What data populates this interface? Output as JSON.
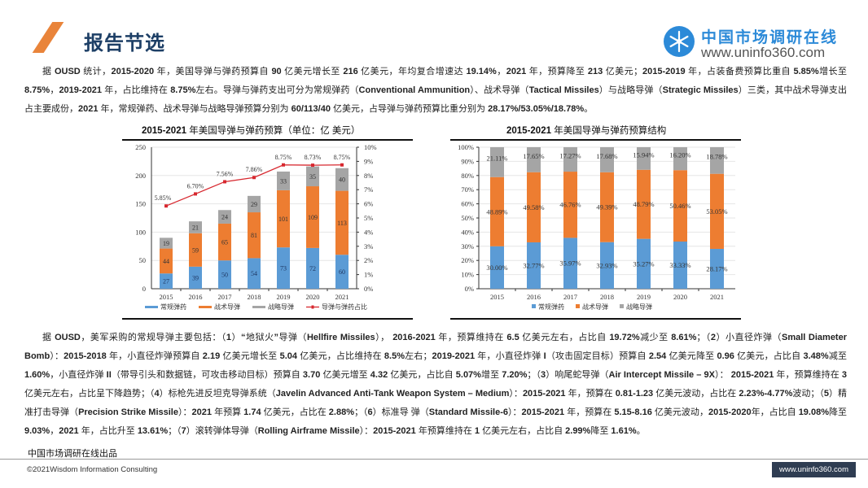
{
  "header": {
    "title": "报告节选",
    "logo_cn": "中国市场调研在线",
    "logo_url": "www.uninfo360.com"
  },
  "paragraph1": [
    {
      "t": "据 "
    },
    {
      "b": "OUSD"
    },
    {
      "t": " 统计，"
    },
    {
      "b": "2015-2020"
    },
    {
      "t": " 年，美国导弹与弹药预算自 "
    },
    {
      "b": "90"
    },
    {
      "t": " 亿美元增长至 "
    },
    {
      "b": "216"
    },
    {
      "t": " 亿美元，年均复合增速达 "
    },
    {
      "b": "19.14%"
    },
    {
      "t": "，"
    },
    {
      "b": "2021"
    },
    {
      "t": " 年，预算降至 "
    },
    {
      "b": "213"
    },
    {
      "t": " 亿美元；"
    },
    {
      "b": "2015-2019"
    },
    {
      "t": " 年，占装备费预算比重自 "
    },
    {
      "b": "5.85%"
    },
    {
      "t": "增长至 "
    },
    {
      "b": "8.75%"
    },
    {
      "t": "，"
    },
    {
      "b": "2019-2021"
    },
    {
      "t": " 年，占比维持在 "
    },
    {
      "b": "8.75%"
    },
    {
      "t": "左右。导弹与弹药支出可分为常规弹药（"
    },
    {
      "b": "Conventional Ammunition"
    },
    {
      "t": "）、战术导弹（"
    },
    {
      "b": "Tactical Missiles"
    },
    {
      "t": "）与战略导弹（"
    },
    {
      "b": "Strategic Missiles"
    },
    {
      "t": "）三类，其中战术导弹支出占主要成份，"
    },
    {
      "b": "2021"
    },
    {
      "t": " 年，常规弹药、战术导弹与战略导弹预算分别为 "
    },
    {
      "b": "60/113/40"
    },
    {
      "t": " 亿美元，占导弹与弹药预算比重分别为 "
    },
    {
      "b": "28.17%/53.05%/18.78%"
    },
    {
      "t": "。"
    }
  ],
  "paragraph2": [
    {
      "t": "据 "
    },
    {
      "b": "OUSD"
    },
    {
      "t": "，美军采购的常规导弹主要包括：（"
    },
    {
      "b": "1"
    },
    {
      "t": "）"
    },
    {
      "b": "“"
    },
    {
      "t": "地狱火"
    },
    {
      "b": "”"
    },
    {
      "t": "导弹（"
    },
    {
      "b": "Hellfire Missiles"
    },
    {
      "t": "），  "
    },
    {
      "b": "2016-2021"
    },
    {
      "t": " 年，预算维持在 "
    },
    {
      "b": "6.5"
    },
    {
      "t": " 亿美元左右，占比自 "
    },
    {
      "b": "19.72%"
    },
    {
      "t": "减少至 "
    },
    {
      "b": "8.61%"
    },
    {
      "t": "；（"
    },
    {
      "b": "2"
    },
    {
      "t": "）小直径炸弹（"
    },
    {
      "b": "Small Diameter Bomb"
    },
    {
      "t": "）："
    },
    {
      "b": "2015-2018"
    },
    {
      "t": " 年，小直径炸弹预算自 "
    },
    {
      "b": "2.19"
    },
    {
      "t": " 亿美元增长至 "
    },
    {
      "b": "5.04"
    },
    {
      "t": " 亿美元，占比维持在 "
    },
    {
      "b": "8.5%"
    },
    {
      "t": "左右；"
    },
    {
      "b": "2019-2021"
    },
    {
      "t": " 年，小直径炸弹 "
    },
    {
      "b": "I"
    },
    {
      "t": "（攻击固定目标）预算自 "
    },
    {
      "b": "2.54"
    },
    {
      "t": " 亿美元降至 "
    },
    {
      "b": "0.96"
    },
    {
      "t": " 亿美元，占比自 "
    },
    {
      "b": "3.48%"
    },
    {
      "t": "减至 "
    },
    {
      "b": "1.60%"
    },
    {
      "t": "，小直径炸弹 "
    },
    {
      "b": "II"
    },
    {
      "t": "（带导引头和数据链，可攻击移动目标）预算自 "
    },
    {
      "b": "3.70"
    },
    {
      "t": " 亿美元增至 "
    },
    {
      "b": "4.32"
    },
    {
      "t": " 亿美元，占比自 "
    },
    {
      "b": "5.07%"
    },
    {
      "t": "增至 "
    },
    {
      "b": "7.20%"
    },
    {
      "t": "；（"
    },
    {
      "b": "3"
    },
    {
      "t": "）响尾蛇导弹（"
    },
    {
      "b": "Air Intercept Missile – 9X"
    },
    {
      "t": "）： "
    },
    {
      "b": "2015-2021"
    },
    {
      "t": " 年，预算维持在 "
    },
    {
      "b": "3"
    },
    {
      "t": " 亿美元左右，占比呈下降趋势；（"
    },
    {
      "b": "4"
    },
    {
      "t": "）标枪先进反坦克导弹系统（"
    },
    {
      "b": "Javelin Advanced Anti-Tank Weapon System – Medium"
    },
    {
      "t": "）："
    },
    {
      "b": "2015-2021"
    },
    {
      "t": " 年，预算在 "
    },
    {
      "b": "0.81-1.23"
    },
    {
      "t": " 亿美元波动，占比在 "
    },
    {
      "b": "2.23%-4.77%"
    },
    {
      "t": "波动；（"
    },
    {
      "b": "5"
    },
    {
      "t": "）精准打击导弹（"
    },
    {
      "b": "Precision Strike Missile"
    },
    {
      "t": "）："
    },
    {
      "b": "2021"
    },
    {
      "t": " 年预算 "
    },
    {
      "b": "1.74"
    },
    {
      "t": " 亿美元，占比在 "
    },
    {
      "b": "2.88%"
    },
    {
      "t": "；（"
    },
    {
      "b": "6"
    },
    {
      "t": "）标准导 弹（"
    },
    {
      "b": "Standard Missile-6"
    },
    {
      "t": "）："
    },
    {
      "b": "2015-2021"
    },
    {
      "t": " 年，预算在 "
    },
    {
      "b": "5.15-8.16"
    },
    {
      "t": " 亿美元波动，"
    },
    {
      "b": "2015-2020"
    },
    {
      "t": "年，占比自 "
    },
    {
      "b": "19.08%"
    },
    {
      "t": "降至 "
    },
    {
      "b": "9.03%"
    },
    {
      "t": "，"
    },
    {
      "b": "2021"
    },
    {
      "t": " 年，占比升至 "
    },
    {
      "b": "13.61%"
    },
    {
      "t": "；（"
    },
    {
      "b": "7"
    },
    {
      "t": "）滚转弹体导弹（"
    },
    {
      "b": "Rolling Airframe Missile"
    },
    {
      "t": "）："
    },
    {
      "b": "2015-2021"
    },
    {
      "t": " 年预算维持在 "
    },
    {
      "b": "1"
    },
    {
      "t": " 亿美元左右，占比自 "
    },
    {
      "b": "2.99%"
    },
    {
      "t": "降至 "
    },
    {
      "b": "1.61%"
    },
    {
      "t": "。"
    }
  ],
  "chart_titles": {
    "left_bold": "2015-2021",
    "left_rest": " 年美国导弹与弹药预算（单位：亿 美元）",
    "right_bold": "2015-2021",
    "right_rest": " 年美国导弹与弹药预算结构"
  },
  "chart_data": [
    {
      "type": "bar",
      "stacked": true,
      "title": "2015-2021 年美国导弹与弹药预算（单位：亿 美元）",
      "categories": [
        "2015",
        "2016",
        "2017",
        "2018",
        "2019",
        "2020",
        "2021"
      ],
      "series": [
        {
          "name": "常规弹药",
          "color": "#5b9bd5",
          "values": [
            27,
            39,
            50,
            54,
            73,
            72,
            60
          ]
        },
        {
          "name": "战术导弹",
          "color": "#ed7d31",
          "values": [
            44,
            59,
            65,
            81,
            101,
            109,
            113
          ]
        },
        {
          "name": "战略导弹",
          "color": "#a5a5a5",
          "values": [
            19,
            21,
            24,
            29,
            33,
            35,
            40
          ]
        }
      ],
      "line_series": {
        "name": "导弹与弹药占比",
        "color": "#d7282f",
        "axis": "right",
        "values": [
          5.85,
          6.7,
          7.56,
          7.86,
          8.75,
          8.73,
          8.75
        ],
        "labels": [
          "5.85%",
          "6.70%",
          "7.56%",
          "7.86%",
          "8.75%",
          "8.73%",
          "8.75%"
        ]
      },
      "ylim": [
        0,
        250
      ],
      "yticks": [
        "0",
        "50",
        "100",
        "150",
        "200",
        "250"
      ],
      "y2lim": [
        0,
        10
      ],
      "y2ticks": [
        "0%",
        "1%",
        "2%",
        "3%",
        "4%",
        "5%",
        "6%",
        "7%",
        "8%",
        "9%",
        "10%"
      ],
      "legend": "bottom",
      "grid": true
    },
    {
      "type": "bar",
      "stacked": true,
      "percent": true,
      "title": "2015-2021 年美国导弹与弹药预算结构",
      "categories": [
        "2015",
        "2016",
        "2017",
        "2018",
        "2019",
        "2020",
        "2021"
      ],
      "series": [
        {
          "name": "常规弹药",
          "color": "#5b9bd5",
          "values": [
            30.0,
            32.77,
            35.97,
            32.93,
            35.27,
            33.33,
            28.17
          ],
          "labels": [
            "30.00%",
            "32.77%",
            "35.97%",
            "32.93%",
            "35.27%",
            "33.33%",
            "28.17%"
          ]
        },
        {
          "name": "战术导弹",
          "color": "#ed7d31",
          "values": [
            48.89,
            49.58,
            46.76,
            49.39,
            48.79,
            50.46,
            53.05
          ],
          "labels": [
            "48.89%",
            "49.58%",
            "46.76%",
            "49.39%",
            "48.79%",
            "50.46%",
            "53.05%"
          ]
        },
        {
          "name": "战略导弹",
          "color": "#a5a5a5",
          "values": [
            21.11,
            17.65,
            17.27,
            17.68,
            15.94,
            16.2,
            18.78
          ],
          "labels": [
            "21.11%",
            "17.65%",
            "17.27%",
            "17.68%",
            "15.94%",
            "16.20%",
            "18.78%"
          ]
        }
      ],
      "ylim": [
        0,
        100
      ],
      "yticks": [
        "0%",
        "10%",
        "20%",
        "30%",
        "40%",
        "50%",
        "60%",
        "70%",
        "80%",
        "90%",
        "100%"
      ],
      "legend": "bottom",
      "grid": true
    }
  ],
  "footer": {
    "brand": "中国市场调研在线出品",
    "copyright": "©2021Wisdom Information Consulting",
    "url": "www.uninfo360.com"
  }
}
